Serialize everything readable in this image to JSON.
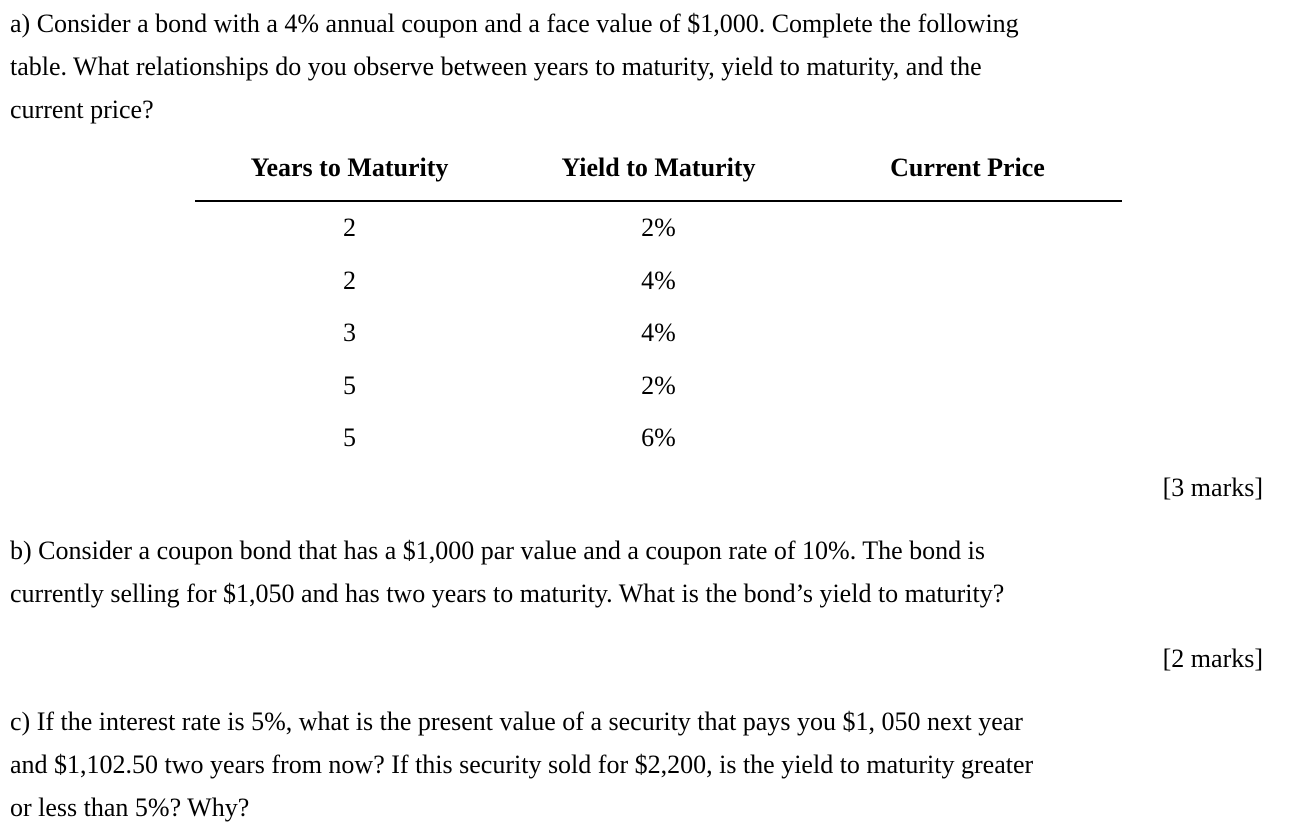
{
  "colors": {
    "text": "#000000",
    "background": "#ffffff",
    "table_rule": "#000000"
  },
  "document": {
    "para_a": {
      "lines": [
        "a) Consider a bond with a 4% annual coupon and a face value of $1,000. Complete the following",
        "table. What relationships do you observe between years to maturity, yield to maturity, and the",
        "current price?"
      ]
    },
    "table": {
      "headers": [
        "Years to Maturity",
        "Yield to Maturity",
        "Current Price"
      ],
      "rows": [
        [
          "2",
          "2%",
          ""
        ],
        [
          "2",
          "4%",
          ""
        ],
        [
          "3",
          "4%",
          ""
        ],
        [
          "5",
          "2%",
          ""
        ],
        [
          "5",
          "6%",
          ""
        ]
      ]
    },
    "marks_a": "[3 marks]",
    "para_b": {
      "lines": [
        "b) Consider a coupon bond that has a $1,000 par value and a coupon rate of 10%. The bond is",
        "currently selling for $1,050 and has two years to maturity. What is the bond’s yield to maturity?"
      ]
    },
    "marks_b": "[2 marks]",
    "para_c": {
      "lines": [
        "c) If the interest rate is 5%, what is the present value of a security that pays you $1, 050 next year",
        "and $1,102.50 two years from now? If this security sold for $2,200, is the yield to maturity greater",
        "or less than 5%? Why?"
      ]
    }
  }
}
